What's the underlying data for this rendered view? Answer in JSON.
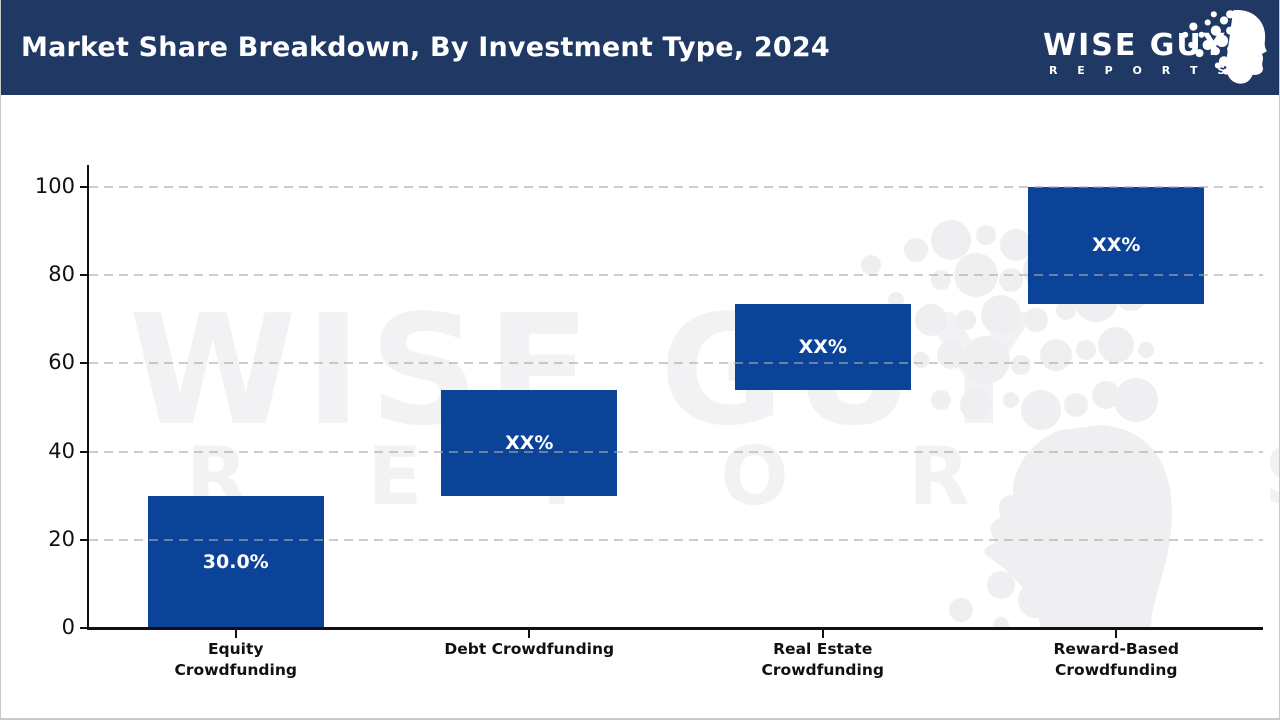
{
  "header": {
    "title": "Market Share Breakdown, By Investment Type, 2024",
    "logo_line1": "WISE GUY",
    "logo_line2": "R E P O R T S"
  },
  "watermark": {
    "line1": "WISE GUY",
    "line2": "R E P O R T S"
  },
  "chart_data": {
    "type": "bar",
    "variant": "waterfall",
    "title": "Market Share Breakdown, By Investment Type, 2024",
    "categories": [
      [
        "Equity",
        "Crowdfunding"
      ],
      [
        "Debt Crowdfunding"
      ],
      [
        "Real Estate",
        "Crowdfunding"
      ],
      [
        "Reward-Based",
        "Crowdfunding"
      ]
    ],
    "segments": [
      {
        "start": 0,
        "end": 30,
        "label": "30.0%"
      },
      {
        "start": 30,
        "end": 54,
        "label": "XX%"
      },
      {
        "start": 54,
        "end": 73.5,
        "label": "XX%"
      },
      {
        "start": 73.5,
        "end": 100,
        "label": "XX%"
      }
    ],
    "yticks": [
      0,
      20,
      40,
      60,
      80,
      100
    ],
    "ylim": [
      0,
      105
    ],
    "grid": "dashed-horizontal",
    "legend": "none",
    "colors": {
      "bar": "#0B4398",
      "header_bg": "#1F3864",
      "grid": "#AAAAAA",
      "axis": "#111111",
      "bar_label": "#FFFFFF",
      "watermark": "#F2F2F4"
    }
  }
}
